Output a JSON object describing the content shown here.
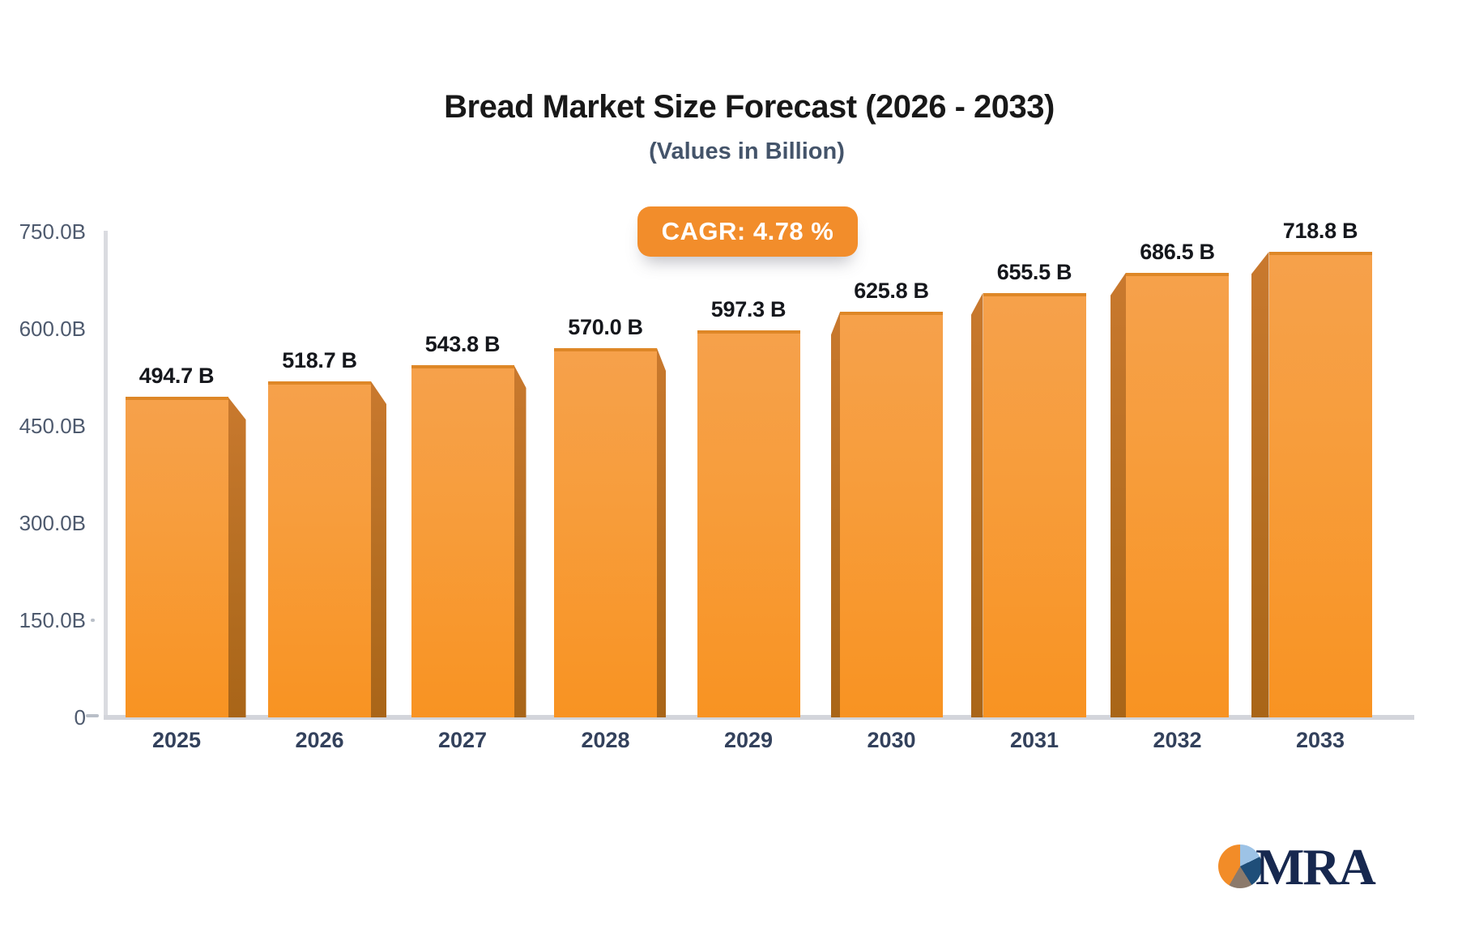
{
  "title": "Bread Market Size Forecast (2026 - 2033)",
  "subtitle": "(Values in Billion)",
  "badge": {
    "label": "CAGR: 4.78 %"
  },
  "chart_data": {
    "type": "bar",
    "title": "Bread Market Size Forecast (2026 - 2033)",
    "subtitle": "(Values in Billion)",
    "cagr_annotation": "CAGR: 4.78 %",
    "categories": [
      "2025",
      "2026",
      "2027",
      "2028",
      "2029",
      "2030",
      "2031",
      "2032",
      "2033"
    ],
    "values": [
      494.7,
      518.7,
      543.8,
      570.0,
      597.3,
      625.8,
      655.5,
      686.5,
      718.8
    ],
    "value_labels": [
      "494.7 B",
      "518.7 B",
      "543.8 B",
      "570.0 B",
      "597.3 B",
      "625.8 B",
      "655.5 B",
      "686.5 B",
      "718.8 B"
    ],
    "xlabel": "",
    "ylabel": "",
    "y_ticks": [
      {
        "label": "750.0B",
        "value": 750
      },
      {
        "label": "600.0B",
        "value": 600
      },
      {
        "label": "450.0B",
        "value": 450
      },
      {
        "label": "300.0B",
        "value": 300
      },
      {
        "label": "150.0B",
        "value": 150
      },
      {
        "label": "0",
        "value": 0
      }
    ],
    "ylim": [
      0,
      750
    ],
    "grid": false,
    "legend": null,
    "bar_color": "#F7941E",
    "bar_side_color": "#B06A1E",
    "bar_top_edge_color": "#DE8727",
    "style": "pseudo-3d bars, depth faces toward outer edges, flat center bar"
  },
  "colors": {
    "badge_bg": "#F28D2B",
    "badge_text": "#FFFFFF",
    "title_text": "#181818",
    "subtitle_text": "#44546A",
    "axis_line": "#D3D5DB",
    "y_label_text": "#4E5A6E",
    "x_label_text": "#33415C",
    "value_label_text": "#15171C"
  },
  "logo": {
    "text": "MRA",
    "pie_slice_colors": [
      "#F28C28",
      "#9DC3E6",
      "#1F4E79",
      "#8C7A6B"
    ]
  }
}
